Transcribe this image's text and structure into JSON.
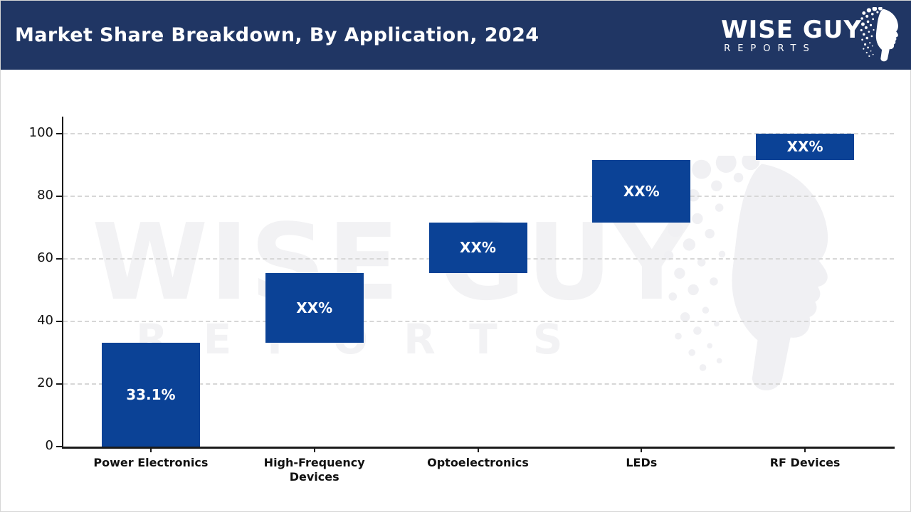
{
  "header": {
    "title": "Market Share Breakdown, By Application, 2024",
    "bg_color": "#203664",
    "logo": {
      "line1": "WISE GUY",
      "line2": "REPORTS"
    }
  },
  "watermark": {
    "line1": "WISE GUY",
    "line2": "REPORTS"
  },
  "chart_data": {
    "type": "bar",
    "subtype": "waterfall",
    "title": "Market Share Breakdown, By Application, 2024",
    "xlabel": "",
    "ylabel": "",
    "ylim": [
      0,
      100
    ],
    "yticks": [
      0,
      20,
      40,
      60,
      80,
      100
    ],
    "grid": "horizontal-dashed",
    "legend": "none",
    "bar_color": "#0b4296",
    "bar_label_color": "#ffffff",
    "categories": [
      "Power Electronics",
      "High-Frequency Devices",
      "Optoelectronics",
      "LEDs",
      "RF Devices"
    ],
    "segments": [
      {
        "category": "Power Electronics",
        "label": "33.1%",
        "start": 0,
        "end": 33.1,
        "value": 33.1
      },
      {
        "category": "High-Frequency Devices",
        "label": "XX%",
        "start": 33.1,
        "end": 55.5,
        "value": 22.4
      },
      {
        "category": "Optoelectronics",
        "label": "XX%",
        "start": 55.5,
        "end": 71.6,
        "value": 16.1
      },
      {
        "category": "LEDs",
        "label": "XX%",
        "start": 71.6,
        "end": 91.6,
        "value": 20.0
      },
      {
        "category": "RF Devices",
        "label": "XX%",
        "start": 91.6,
        "end": 100.0,
        "value": 8.4
      }
    ]
  }
}
